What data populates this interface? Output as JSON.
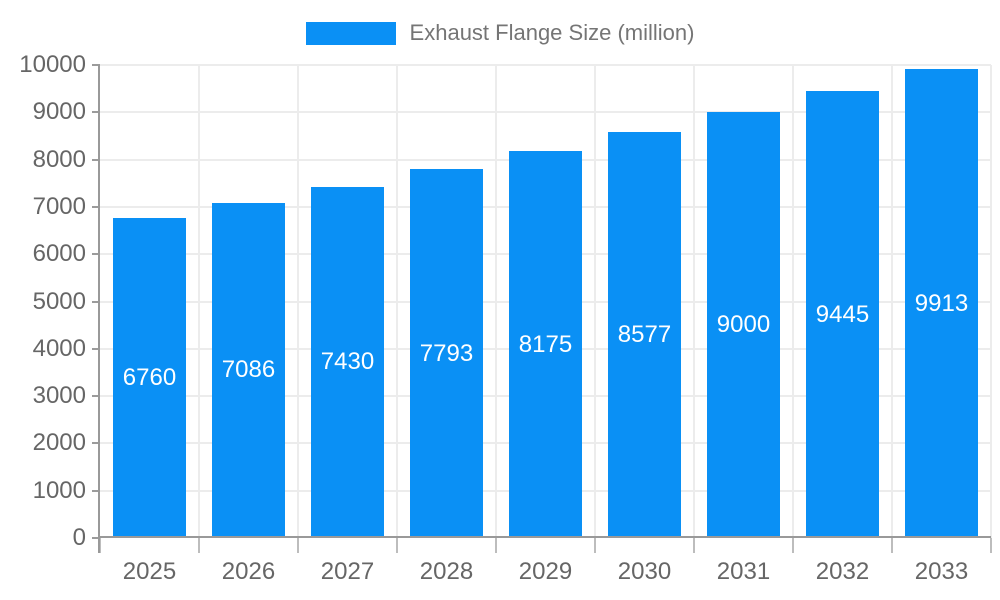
{
  "legend": {
    "label": "Exhaust Flange Size (million)"
  },
  "chart_data": {
    "type": "bar",
    "title": "",
    "series": [
      {
        "name": "Exhaust Flange Size (million)",
        "values": [
          6760,
          7086,
          7430,
          7793,
          8175,
          8577,
          9000,
          9445,
          9913
        ]
      }
    ],
    "categories": [
      "2025",
      "2026",
      "2027",
      "2028",
      "2029",
      "2030",
      "2031",
      "2032",
      "2033"
    ],
    "bar_value_labels": [
      "6760",
      "7086",
      "7430",
      "7793",
      "8175",
      "8577",
      "9000",
      "9445",
      "9913"
    ],
    "xlabel": "",
    "ylabel": "",
    "ylim": [
      0,
      10000
    ],
    "ytick_step": 1000,
    "yticks": [
      0,
      1000,
      2000,
      3000,
      4000,
      5000,
      6000,
      7000,
      8000,
      9000,
      10000
    ],
    "grid": true,
    "legend_position": "top-center",
    "colors": {
      "bar": "#0a90f5",
      "bar_value_text": "#ffffff",
      "axis_text": "#666666",
      "legend_text": "#757575",
      "gridline": "#ececec",
      "axis_line": "#999999",
      "background": "#ffffff"
    }
  }
}
